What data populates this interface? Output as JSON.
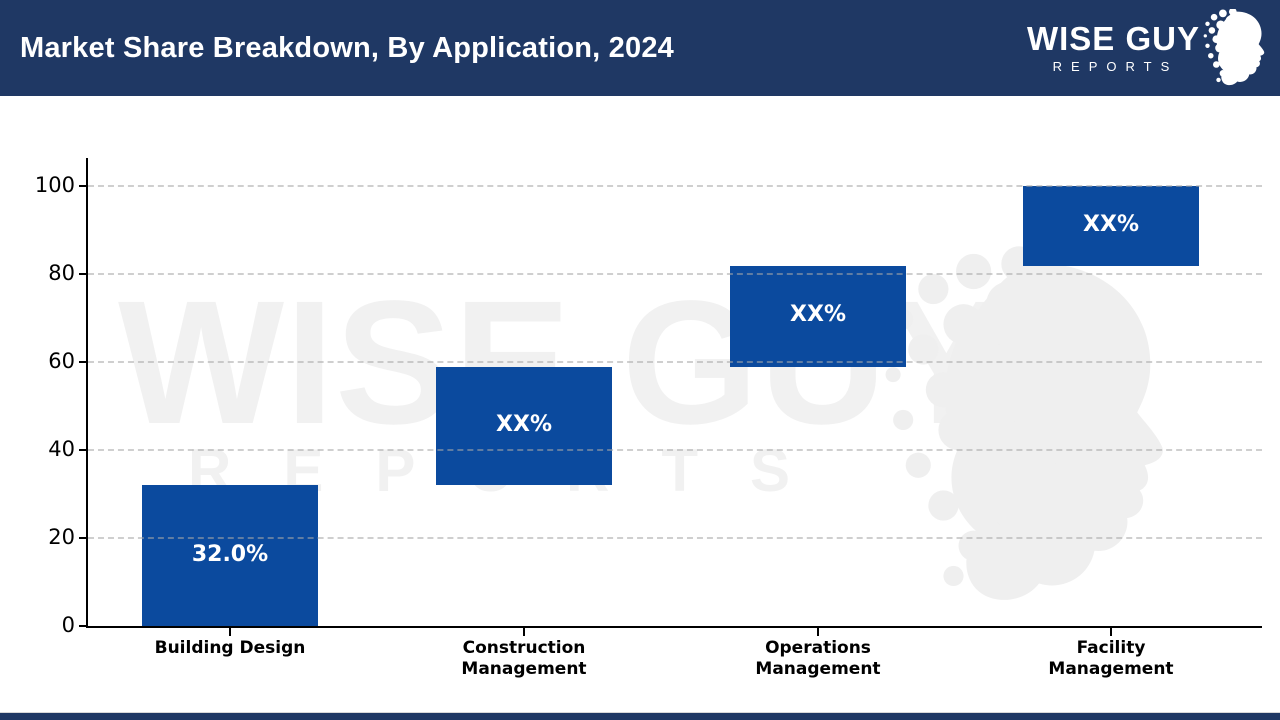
{
  "header": {
    "title": "Market Share Breakdown, By Application, 2024",
    "bg_color": "#1f3864",
    "logo": {
      "wordmark": "WISE GUY",
      "subtext": "REPORTS",
      "face_icon": "dotted-face-profile"
    }
  },
  "watermark": {
    "wordmark": "WISE GUY",
    "subtext": "REPORTS"
  },
  "chart_data": {
    "type": "bar",
    "subtype": "waterfall",
    "title": "Market Share Breakdown, By Application, 2024",
    "categories": [
      "Building Design",
      "Construction Management",
      "Operations Management",
      "Facility Management"
    ],
    "segments": [
      {
        "category": "Building Design",
        "start": 0,
        "end": 32.0,
        "label": "32.0%"
      },
      {
        "category": "Construction Management",
        "start": 32.0,
        "end": 58.9,
        "label": "XX%"
      },
      {
        "category": "Operations Management",
        "start": 58.9,
        "end": 81.9,
        "label": "XX%"
      },
      {
        "category": "Facility Management",
        "start": 81.9,
        "end": 100.0,
        "label": "XX%"
      }
    ],
    "ylim": [
      0,
      100
    ],
    "yticks": [
      0,
      20,
      40,
      60,
      80,
      100
    ],
    "grid": true,
    "gridline_style": "dashed",
    "legend": false,
    "bar_color": "#0b4a9e",
    "value_label_color": "#ffffff"
  },
  "footer": {
    "bar_color": "#1f3864"
  }
}
